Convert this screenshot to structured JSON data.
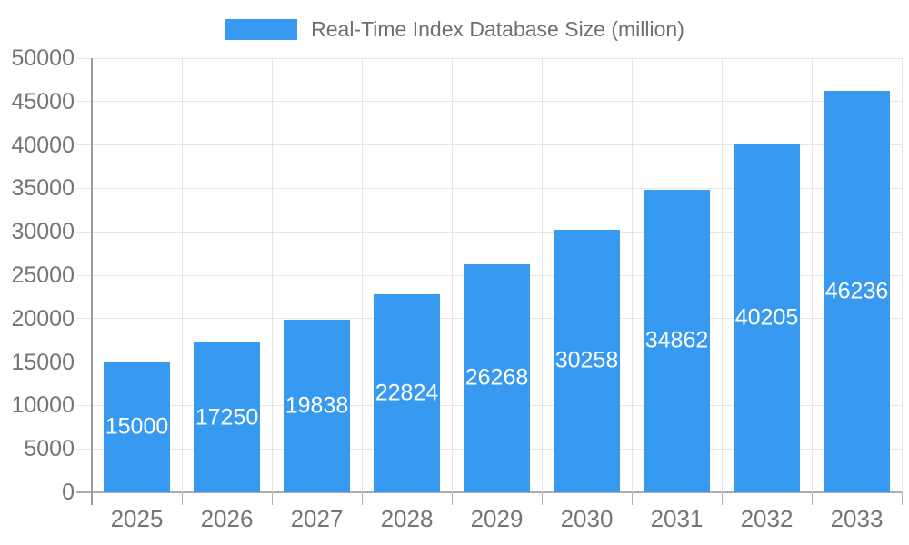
{
  "colors": {
    "accent": "#3899F0",
    "grid": "#e6e6e6",
    "axis": "#9a9a9a",
    "zero_line": "#adadad",
    "tick": "#b3b3b3",
    "axis_text": "#757575",
    "legend_text": "#6f6f6f",
    "value_text": "#ffffff",
    "background": "#ffffff"
  },
  "legend": {
    "label": "Real-Time Index Database Size (million)",
    "position": "top-center"
  },
  "chart_data": {
    "type": "bar",
    "title": "Real-Time Index Database Size (million)",
    "categories": [
      "2025",
      "2026",
      "2027",
      "2028",
      "2029",
      "2030",
      "2031",
      "2032",
      "2033"
    ],
    "values": [
      15000,
      17250,
      19838,
      22824,
      26268,
      30258,
      34862,
      40205,
      46236
    ],
    "series_name": "Real-Time Index Database Size (million)",
    "xlabel": "",
    "ylabel": "",
    "ylim": [
      0,
      50000
    ],
    "ytick_step": 5000,
    "yticks": [
      "0",
      "5000",
      "10000",
      "15000",
      "20000",
      "25000",
      "30000",
      "35000",
      "40000",
      "45000",
      "50000"
    ],
    "grid": "on",
    "legend_position": "top",
    "value_labels": "inside-center"
  }
}
